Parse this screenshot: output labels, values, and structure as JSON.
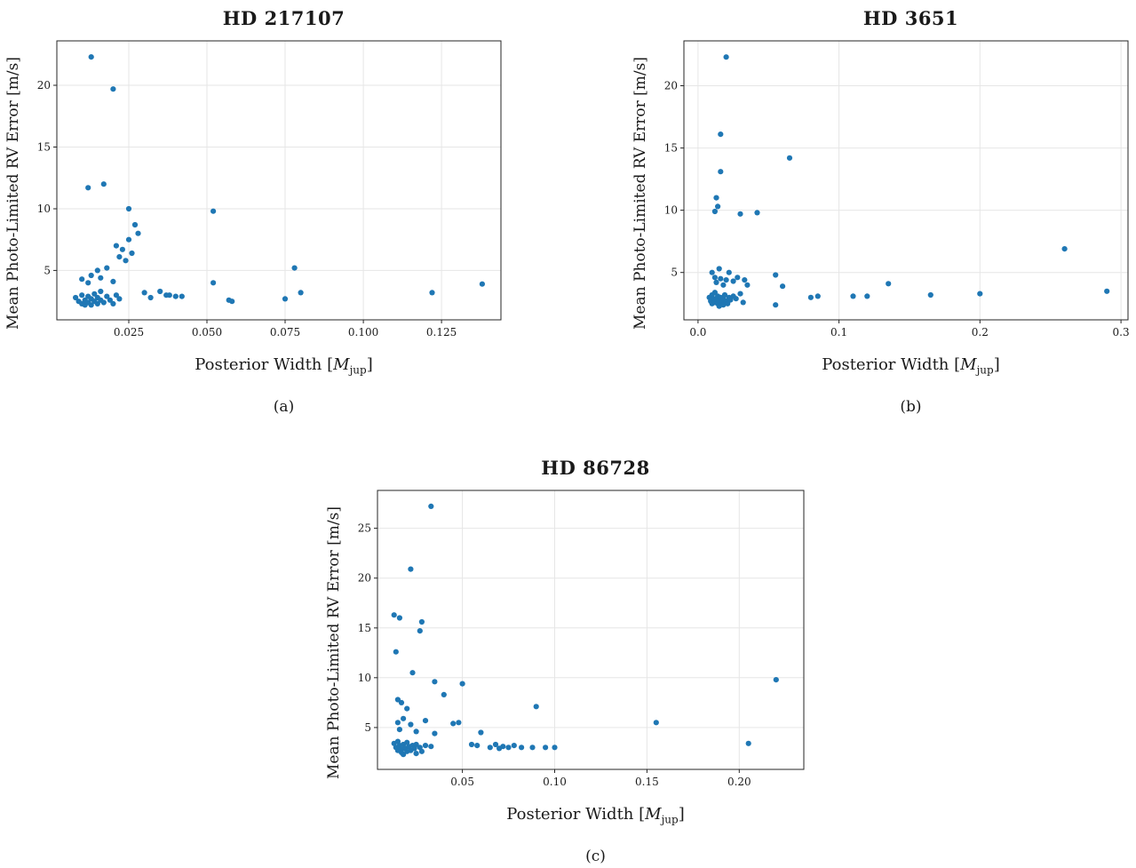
{
  "figure": {
    "background": "#ffffff",
    "point_color": "#1f77b4",
    "grid_color": "#e6e6e6",
    "frame_color": "#262626"
  },
  "chart_data": [
    {
      "type": "scatter",
      "title": "HD 217107",
      "caption": "(a)",
      "ylabel": "Mean Photo-Limited RV Error [m/s]",
      "xlabel": "Posterior Width [M_jup]",
      "xlabel_prefix": "Posterior Width [",
      "xlabel_var": "M",
      "xlabel_sub": "jup",
      "xlabel_suffix": "]",
      "xlim": [
        0.002,
        0.144
      ],
      "ylim": [
        1.0,
        23.6
      ],
      "xticks": [
        0.025,
        0.05,
        0.075,
        0.1,
        0.125
      ],
      "xtick_labels": [
        "0.025",
        "0.050",
        "0.075",
        "0.100",
        "0.125"
      ],
      "yticks": [
        5,
        10,
        15,
        20
      ],
      "ytick_labels": [
        "5",
        "10",
        "15",
        "20"
      ],
      "x": [
        0.008,
        0.009,
        0.01,
        0.01,
        0.011,
        0.011,
        0.012,
        0.012,
        0.013,
        0.013,
        0.014,
        0.014,
        0.015,
        0.015,
        0.016,
        0.016,
        0.017,
        0.018,
        0.019,
        0.02,
        0.021,
        0.022,
        0.01,
        0.012,
        0.013,
        0.015,
        0.016,
        0.018,
        0.02,
        0.022,
        0.023,
        0.024,
        0.025,
        0.026,
        0.027,
        0.028,
        0.021,
        0.013,
        0.02,
        0.012,
        0.017,
        0.025,
        0.052,
        0.03,
        0.032,
        0.035,
        0.037,
        0.038,
        0.04,
        0.042,
        0.052,
        0.057,
        0.058,
        0.075,
        0.078,
        0.08,
        0.122,
        0.138
      ],
      "y": [
        2.8,
        2.5,
        2.3,
        3.0,
        2.6,
        2.2,
        2.9,
        2.4,
        2.7,
        2.2,
        3.1,
        2.5,
        2.8,
        2.3,
        2.6,
        3.3,
        2.4,
        2.9,
        2.6,
        2.3,
        3.0,
        2.7,
        4.3,
        4.0,
        4.6,
        5.0,
        4.4,
        5.2,
        4.1,
        6.1,
        6.7,
        5.8,
        7.5,
        6.4,
        8.7,
        8.0,
        7.0,
        22.3,
        19.7,
        11.7,
        12.0,
        10.0,
        9.8,
        3.2,
        2.8,
        3.3,
        3.0,
        3.0,
        2.9,
        2.9,
        4.0,
        2.6,
        2.5,
        2.7,
        5.2,
        3.2,
        3.2,
        3.9
      ]
    },
    {
      "type": "scatter",
      "title": "HD 3651",
      "caption": "(b)",
      "ylabel": "Mean Photo-Limited RV Error [m/s]",
      "xlabel": "Posterior Width [M_jup]",
      "xlabel_prefix": "Posterior Width [",
      "xlabel_var": "M",
      "xlabel_sub": "jup",
      "xlabel_suffix": "]",
      "xlim": [
        -0.01,
        0.305
      ],
      "ylim": [
        1.2,
        23.6
      ],
      "xticks": [
        0.0,
        0.1,
        0.2,
        0.3
      ],
      "xtick_labels": [
        "0.0",
        "0.1",
        "0.2",
        "0.3"
      ],
      "yticks": [
        5,
        10,
        15,
        20
      ],
      "ytick_labels": [
        "5",
        "10",
        "15",
        "20"
      ],
      "x": [
        0.02,
        0.016,
        0.065,
        0.016,
        0.013,
        0.014,
        0.012,
        0.03,
        0.042,
        0.26,
        0.01,
        0.012,
        0.013,
        0.015,
        0.016,
        0.018,
        0.02,
        0.022,
        0.025,
        0.028,
        0.033,
        0.035,
        0.055,
        0.135,
        0.06,
        0.008,
        0.009,
        0.01,
        0.01,
        0.011,
        0.012,
        0.012,
        0.013,
        0.014,
        0.014,
        0.015,
        0.015,
        0.016,
        0.017,
        0.018,
        0.018,
        0.019,
        0.02,
        0.021,
        0.022,
        0.023,
        0.025,
        0.027,
        0.03,
        0.032,
        0.055,
        0.08,
        0.085,
        0.11,
        0.12,
        0.165,
        0.2,
        0.29
      ],
      "y": [
        22.3,
        16.1,
        14.2,
        13.1,
        11.0,
        10.3,
        9.9,
        9.7,
        9.8,
        6.9,
        5.0,
        4.6,
        4.2,
        5.3,
        4.5,
        4.0,
        4.4,
        5.0,
        4.3,
        4.6,
        4.4,
        4.0,
        4.8,
        4.1,
        3.9,
        3.0,
        2.7,
        3.2,
        2.5,
        2.9,
        2.6,
        3.4,
        2.8,
        2.5,
        3.1,
        2.7,
        2.3,
        3.0,
        2.6,
        2.9,
        2.4,
        3.2,
        2.7,
        2.5,
        3.0,
        2.8,
        3.1,
        2.9,
        3.3,
        2.6,
        2.4,
        3.0,
        3.1,
        3.1,
        3.1,
        3.2,
        3.3,
        3.5
      ]
    },
    {
      "type": "scatter",
      "title": "HD 86728",
      "caption": "(c)",
      "ylabel": "Mean Photo-Limited RV Error [m/s]",
      "xlabel": "Posterior Width [M_jup]",
      "xlabel_prefix": "Posterior Width [",
      "xlabel_var": "M",
      "xlabel_sub": "jup",
      "xlabel_suffix": "]",
      "xlim": [
        0.004,
        0.235
      ],
      "ylim": [
        0.8,
        28.8
      ],
      "xticks": [
        0.05,
        0.1,
        0.15,
        0.2
      ],
      "xtick_labels": [
        "0.05",
        "0.10",
        "0.15",
        "0.20"
      ],
      "yticks": [
        5,
        10,
        15,
        20,
        25
      ],
      "ytick_labels": [
        "5",
        "10",
        "15",
        "20",
        "25"
      ],
      "x": [
        0.033,
        0.022,
        0.013,
        0.016,
        0.028,
        0.027,
        0.014,
        0.023,
        0.035,
        0.05,
        0.22,
        0.09,
        0.04,
        0.015,
        0.017,
        0.02,
        0.018,
        0.015,
        0.022,
        0.03,
        0.045,
        0.048,
        0.155,
        0.016,
        0.025,
        0.035,
        0.06,
        0.013,
        0.014,
        0.015,
        0.015,
        0.016,
        0.017,
        0.017,
        0.018,
        0.019,
        0.02,
        0.02,
        0.021,
        0.022,
        0.023,
        0.024,
        0.025,
        0.027,
        0.028,
        0.03,
        0.033,
        0.025,
        0.018,
        0.055,
        0.058,
        0.065,
        0.068,
        0.07,
        0.072,
        0.075,
        0.078,
        0.082,
        0.088,
        0.095,
        0.1,
        0.205
      ],
      "y": [
        27.2,
        20.9,
        16.3,
        16.0,
        15.6,
        14.7,
        12.6,
        10.5,
        9.6,
        9.4,
        9.8,
        7.1,
        8.3,
        7.8,
        7.5,
        6.9,
        5.9,
        5.5,
        5.3,
        5.7,
        5.4,
        5.5,
        5.5,
        4.8,
        4.6,
        4.4,
        4.5,
        3.4,
        3.0,
        2.7,
        3.6,
        3.2,
        2.8,
        2.5,
        3.3,
        2.9,
        2.6,
        3.5,
        3.1,
        2.7,
        3.2,
        2.9,
        3.3,
        3.0,
        2.6,
        3.2,
        3.1,
        2.4,
        2.3,
        3.3,
        3.2,
        3.0,
        3.3,
        2.9,
        3.1,
        3.0,
        3.2,
        3.0,
        3.0,
        3.0,
        3.0,
        3.4
      ]
    }
  ]
}
